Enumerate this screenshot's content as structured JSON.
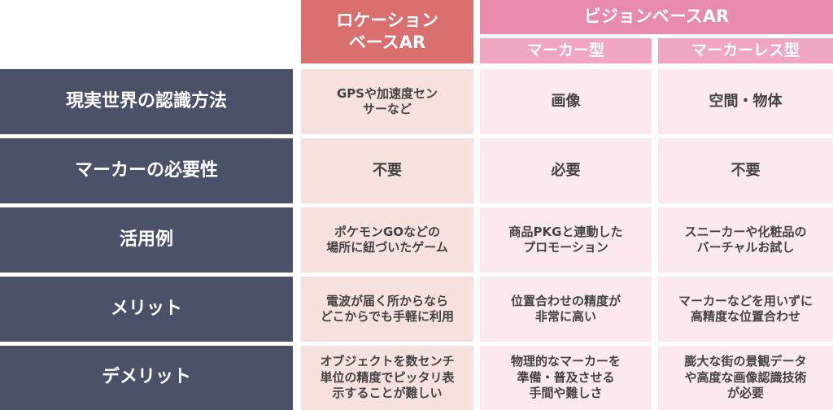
{
  "header": {
    "location_ar": [
      "ロケーション",
      "ベースAR"
    ],
    "vision_ar": "ビジョンベースAR",
    "marker": "マーカー型",
    "markerless": "マーカーレス型"
  },
  "rows": [
    {
      "label": "現実世界の認識方法",
      "cells": [
        [
          "GPSや加速度セン",
          "サーなど"
        ],
        [
          "画像"
        ],
        [
          "空間・物体"
        ]
      ]
    },
    {
      "label": "マーカーの必要性",
      "cells": [
        [
          "不要"
        ],
        [
          "必要"
        ],
        [
          "不要"
        ]
      ]
    },
    {
      "label": "活用例",
      "cells": [
        [
          "ポケモンGOなどの",
          "場所に紐づいたゲーム"
        ],
        [
          "商品PKGと連動した",
          "プロモーション"
        ],
        [
          "スニーカーや化粧品の",
          "バーチャルお試し"
        ]
      ]
    },
    {
      "label": "メリット",
      "cells": [
        [
          "電波が届く所からなら",
          "どこからでも手軽に利用"
        ],
        [
          "位置合わせの精度が",
          "非常に高い"
        ],
        [
          "マーカーなどを用いずに",
          "高精度な位置合わせ"
        ]
      ]
    },
    {
      "label": "デメリット",
      "cells": [
        [
          "オブジェクトを数センチ",
          "単位の精度でピッタリ表",
          "示することが難しい"
        ],
        [
          "物理的なマーカーを",
          "準備・普及させる",
          "手間や難しさ"
        ],
        [
          "膨大な街の景観データ",
          "や高度な画像認識技術",
          "が必要"
        ]
      ]
    }
  ]
}
